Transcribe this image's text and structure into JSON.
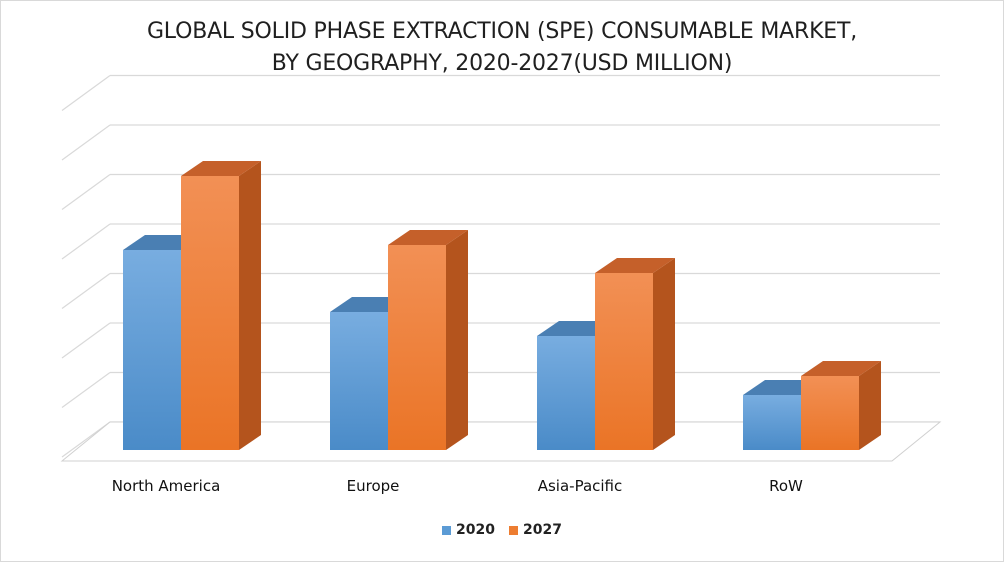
{
  "chart_data": {
    "type": "bar",
    "title": [
      "GLOBAL SOLID PHASE EXTRACTION (SPE) CONSUMABLE MARKET,",
      "BY GEOGRAPHY, 2020-2027(USD MILLION)"
    ],
    "categories": [
      "North America",
      "Europe",
      "Asia-Pacific",
      "RoW"
    ],
    "series": [
      {
        "name": "2020",
        "values": [
          400,
          276,
          228,
          110
        ],
        "color": "#5b9bd5"
      },
      {
        "name": "2027",
        "values": [
          548,
          410,
          354,
          148
        ],
        "color": "#ed7d31"
      }
    ],
    "ylim": [
      0,
      700
    ],
    "y_gridlines": 7,
    "grid": true,
    "three_d": true,
    "legend_position": "bottom"
  }
}
